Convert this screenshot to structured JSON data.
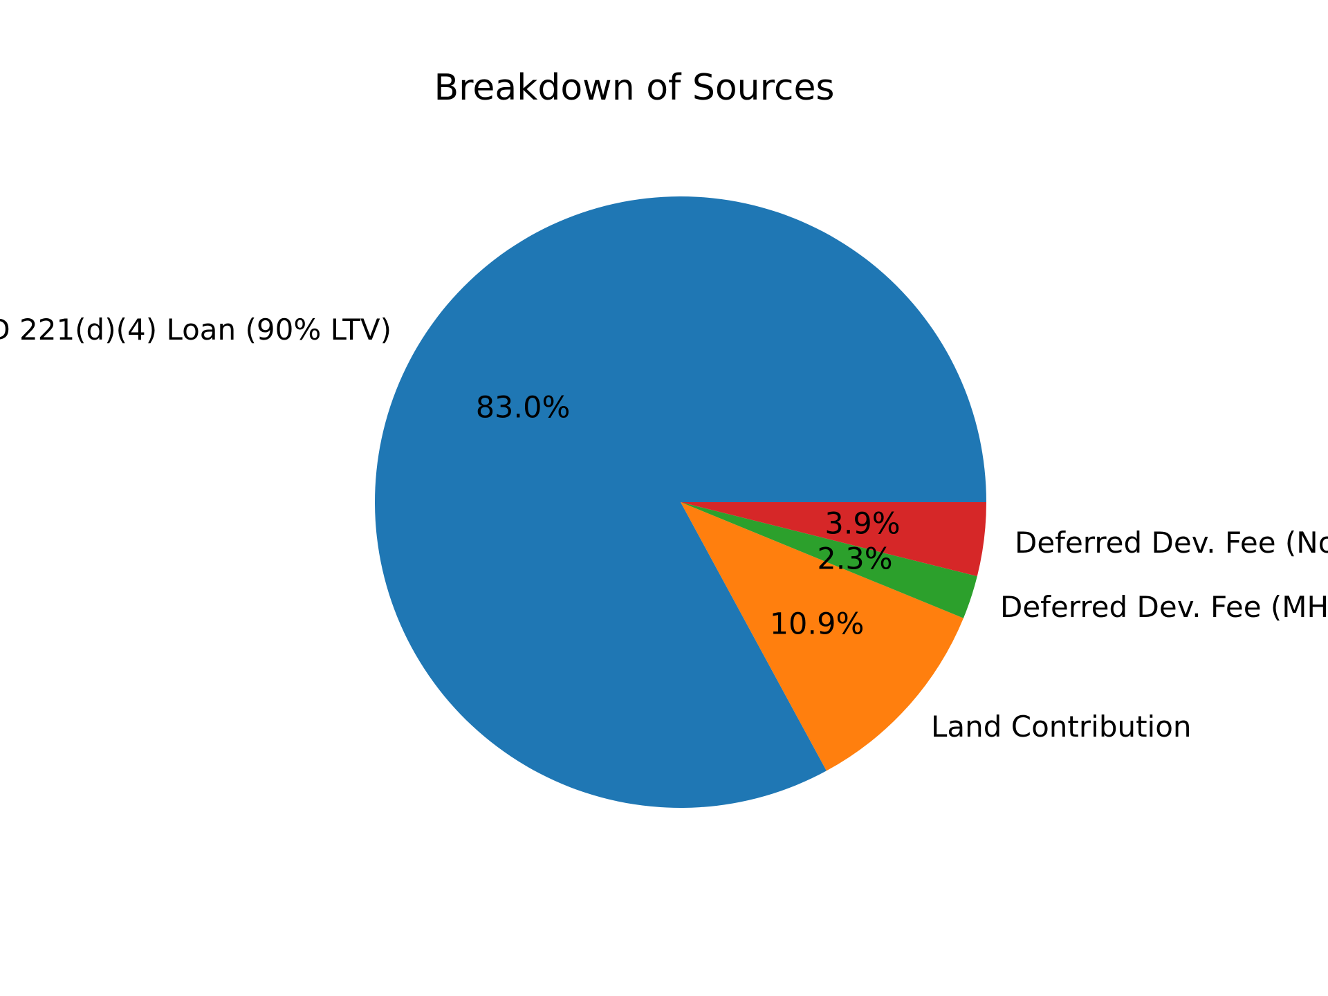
{
  "title": "Breakdown of Sources",
  "chart_data": {
    "type": "pie",
    "title": "Breakdown of Sources",
    "unit": "%",
    "start_angle": 0,
    "direction": "counterclockwise",
    "legend_position": "none",
    "slices": [
      {
        "label": "D 221(d)(4) Loan (90% LTV)",
        "value": 83.0,
        "pct_text": "83.0%",
        "color": "#1f77b4"
      },
      {
        "label": "Land Contribution",
        "value": 10.9,
        "pct_text": "10.9%",
        "color": "#ff7f0e"
      },
      {
        "label": "Deferred Dev. Fee (MH",
        "value": 2.3,
        "pct_text": "2.3%",
        "color": "#2ca02c"
      },
      {
        "label": "Deferred Dev. Fee (No",
        "value": 3.9,
        "pct_text": "3.9%",
        "color": "#d62728"
      }
    ]
  }
}
